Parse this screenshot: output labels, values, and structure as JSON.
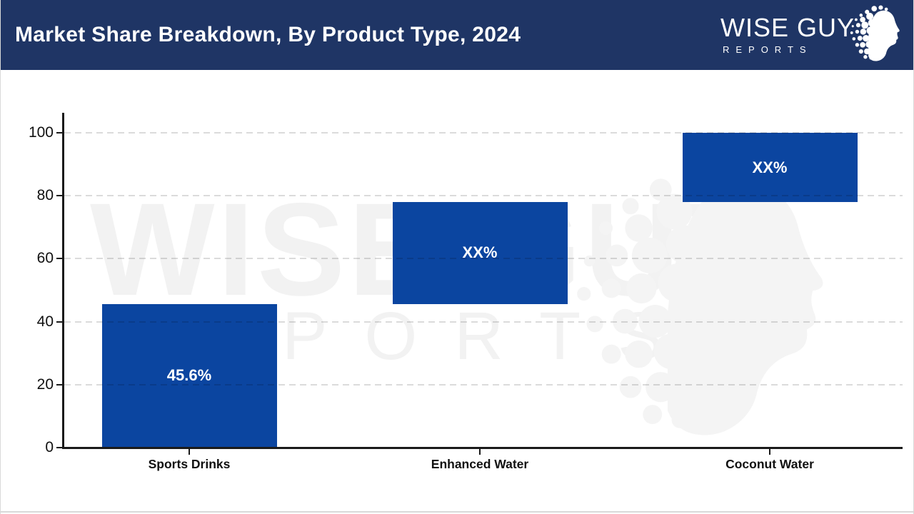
{
  "header": {
    "title": "Market Share Breakdown, By Product Type, 2024",
    "bg_color": "#1f3565",
    "logo": {
      "wordmark": "WISE GUY",
      "subtext": "REPORTS"
    }
  },
  "watermark": {
    "line1": "WISE GUY",
    "line2": "REPORTS"
  },
  "chart_data": {
    "type": "bar",
    "subtype": "floating-waterfall",
    "title": "Market Share Breakdown, By Product Type, 2024",
    "categories": [
      "Sports Drinks",
      "Enhanced Water",
      "Coconut Water"
    ],
    "segments": [
      {
        "category": "Sports Drinks",
        "start": 0,
        "end": 45.6,
        "label": "45.6%"
      },
      {
        "category": "Enhanced Water",
        "start": 45.6,
        "end": 78,
        "label": "XX%"
      },
      {
        "category": "Coconut Water",
        "start": 78,
        "end": 100,
        "label": "XX%"
      }
    ],
    "yticks": [
      0,
      20,
      40,
      60,
      80,
      100
    ],
    "ylim": [
      0,
      106
    ],
    "xlabel": "",
    "ylabel": "",
    "grid": "horizontal-dashed",
    "legend": "none",
    "colors": {
      "bar": "#0b45a0",
      "bar_label": "#ffffff",
      "axis": "#1a1a1a",
      "tick_text": "#111111",
      "grid": "rgba(0,0,0,0.14)",
      "watermark": "#f2f2f2",
      "header_bg": "#1f3565",
      "header_text": "#ffffff"
    }
  }
}
